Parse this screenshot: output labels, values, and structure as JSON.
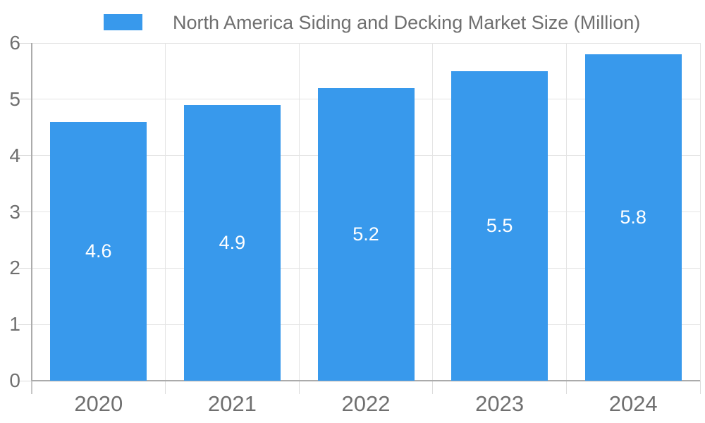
{
  "legend": {
    "label": "North America Siding and Decking Market Size (Million)"
  },
  "colors": {
    "bar": "#3899EC",
    "grid": "#E4E4E4",
    "tick": "#DCDCDC",
    "axis": "#ABABAB",
    "axis_tick_below": "#C6C6C6",
    "text": "#6F6F6F",
    "bar_label": "#FFFFFF",
    "background": "#FFFFFF"
  },
  "chart_data": {
    "type": "bar",
    "title": "North America Siding and Decking Market Size (Million)",
    "categories": [
      "2020",
      "2021",
      "2022",
      "2023",
      "2024"
    ],
    "values": [
      4.6,
      4.9,
      5.2,
      5.5,
      5.8
    ],
    "bar_labels": [
      "4.6",
      "4.9",
      "5.2",
      "5.5",
      "5.8"
    ],
    "series": [
      {
        "name": "North America Siding and Decking Market Size (Million)",
        "values": [
          4.6,
          4.9,
          5.2,
          5.5,
          5.8
        ]
      }
    ],
    "xlabel": "",
    "ylabel": "",
    "ylim": [
      0,
      6
    ],
    "yticks": [
      0,
      1,
      2,
      3,
      4,
      5,
      6
    ],
    "grid": true,
    "legend_position": "top",
    "value_labels_inside_bars": true
  }
}
